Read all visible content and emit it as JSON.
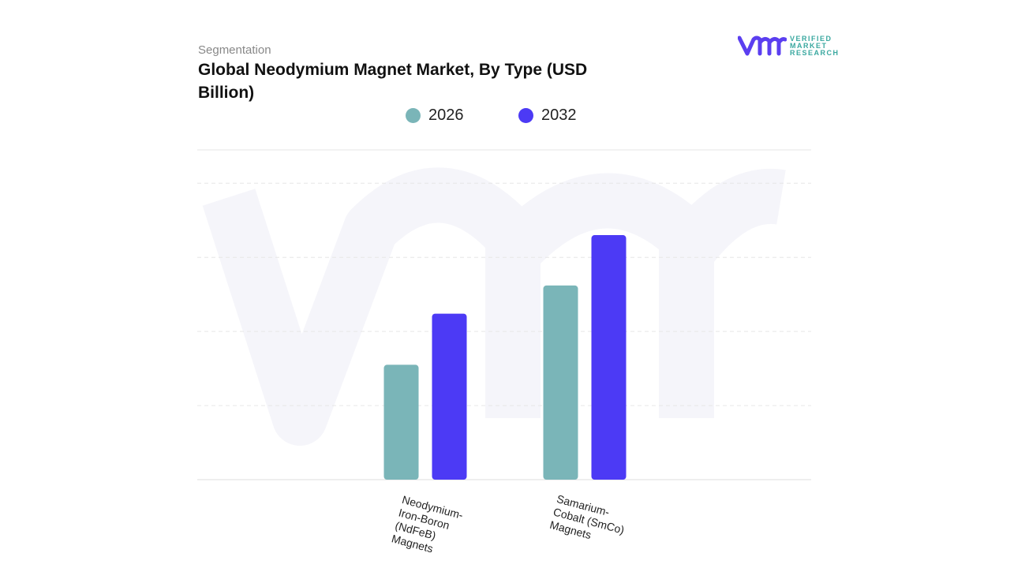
{
  "header": {
    "segment_label": "Segmentation",
    "title": "Global Neodymium Magnet Market, By Type (USD Billion)"
  },
  "logo": {
    "mark": "vmr",
    "line1": "VERIFIED",
    "line2": "MARKET",
    "line3": "RESEARCH",
    "colors": {
      "mark": "#5b3ff0",
      "text": "#3aa8a0"
    }
  },
  "chart_data": {
    "type": "bar",
    "title": "Global Neodymium Magnet Market, By Type (USD Billion)",
    "categories": [
      "Neodymium-Iron-Boron (NdFeB) Magnets",
      "Samarium-Cobalt (SmCo) Magnets"
    ],
    "series": [
      {
        "name": "2026",
        "color": "#7ab5b8",
        "values": [
          1.55,
          2.62
        ]
      },
      {
        "name": "2032",
        "color": "#4c3af5",
        "values": [
          2.24,
          3.3
        ]
      }
    ],
    "ylim": [
      0,
      4.45
    ],
    "grid": true,
    "legend_position": "top-center",
    "xlabel": "",
    "ylabel": ""
  }
}
